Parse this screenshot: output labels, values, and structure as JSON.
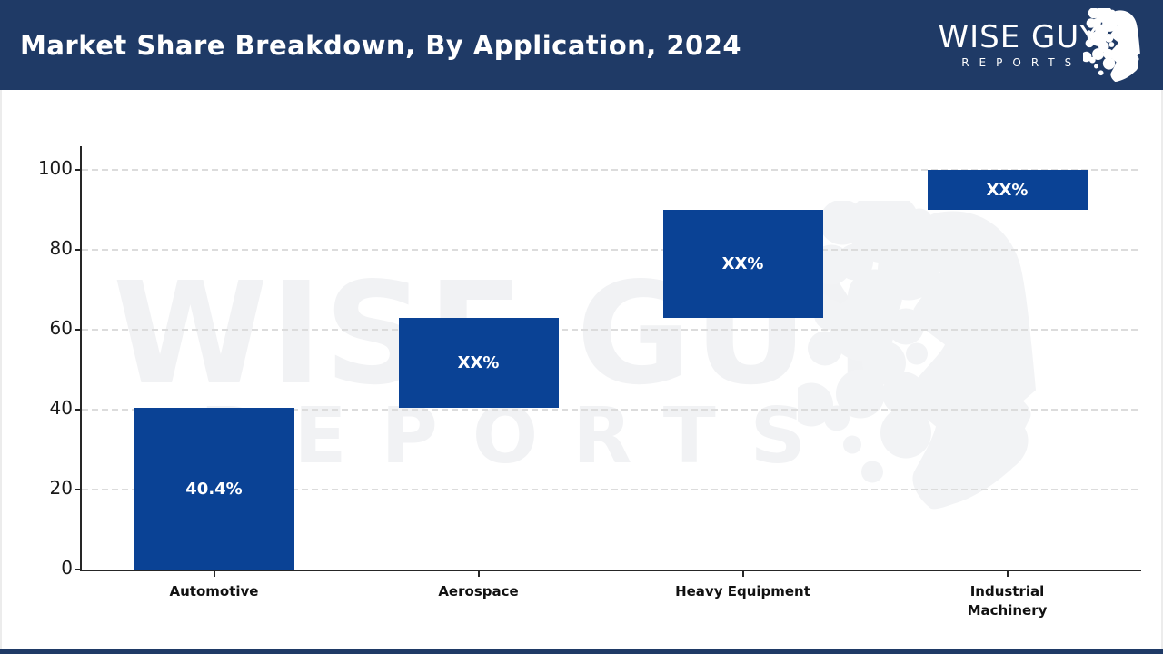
{
  "header": {
    "bg_color": "#1f3a66",
    "logo": {
      "line1": "WISE GUY",
      "line2": "REPORTS"
    }
  },
  "watermark": {
    "line1": "WISE GUY",
    "line2": "REPORTS"
  },
  "chart_data": {
    "type": "bar",
    "subtype": "waterfall",
    "title": "Market Share Breakdown, By Application, 2024",
    "categories": [
      "Automotive",
      "Aerospace",
      "Heavy Equipment",
      "Industrial Machinery"
    ],
    "segments": [
      {
        "category": "Automotive",
        "start": 0,
        "end": 40.4,
        "label": "40.4%"
      },
      {
        "category": "Aerospace",
        "start": 40.4,
        "end": 63,
        "label": "XX%"
      },
      {
        "category": "Heavy Equipment",
        "start": 63,
        "end": 90,
        "label": "XX%"
      },
      {
        "category": "Industrial Machinery",
        "start": 90,
        "end": 100,
        "label": "XX%"
      }
    ],
    "yticks": [
      0,
      20,
      40,
      60,
      80,
      100
    ],
    "ylim": [
      0,
      100
    ],
    "xlabel": "",
    "ylabel": "",
    "grid": "horizontal-dashed",
    "legend": "none",
    "bar_color": "#0a4295",
    "bar_label_color": "#ffffff",
    "axis_color": "#262626",
    "grid_color": "#dcdcdc"
  }
}
